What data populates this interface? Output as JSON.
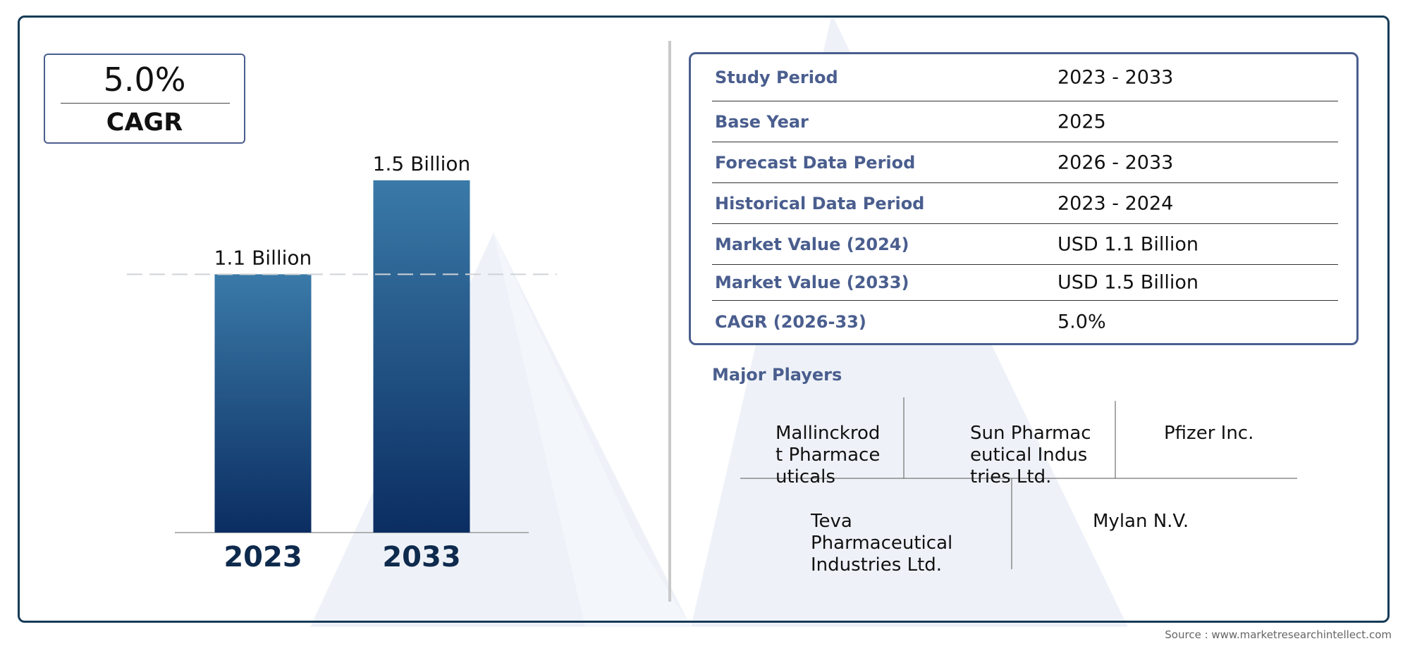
{
  "cagr_box": {
    "value": "5.0%",
    "label": "CAGR"
  },
  "chart_data": {
    "type": "bar",
    "categories": [
      "2023",
      "2033"
    ],
    "values": [
      1.1,
      1.5
    ],
    "data_labels": [
      "1.1 Billion",
      "1.5 Billion"
    ],
    "title": "",
    "xlabel": "",
    "ylabel": "",
    "ylim": [
      0,
      1.5
    ],
    "grid": false,
    "reference_line": 1.1,
    "colors": {
      "bar_top": "#3a7aa8",
      "bar_bottom": "#0b2d62",
      "year_label": "#0e2a4d"
    }
  },
  "info": {
    "rows": [
      {
        "label": "Study Period",
        "value": "2023 - 2033"
      },
      {
        "label": "Base Year",
        "value": "2025"
      },
      {
        "label": "Forecast Data Period",
        "value": "2026 - 2033"
      },
      {
        "label": "Historical Data Period",
        "value": "2023 - 2024"
      },
      {
        "label": "Market Value (2024)",
        "value": "USD 1.1 Billion"
      },
      {
        "label": "Market Value (2033)",
        "value": "USD 1.5 Billion"
      },
      {
        "label": "CAGR (2026-33)",
        "value": "5.0%"
      }
    ]
  },
  "players": {
    "title": "Major Players",
    "items": [
      "Mallinckrodt Pharmaceuticals",
      "Sun Pharmaceutical Industries Ltd.",
      "Pfizer Inc.",
      "Teva Pharmaceutical Industries Ltd.",
      "Mylan N.V."
    ]
  },
  "source": "Source : www.marketresearchintellect.com",
  "colors": {
    "frame": "#163b57",
    "accent": "#4a5e8e",
    "watermark": "#e9eef5"
  }
}
